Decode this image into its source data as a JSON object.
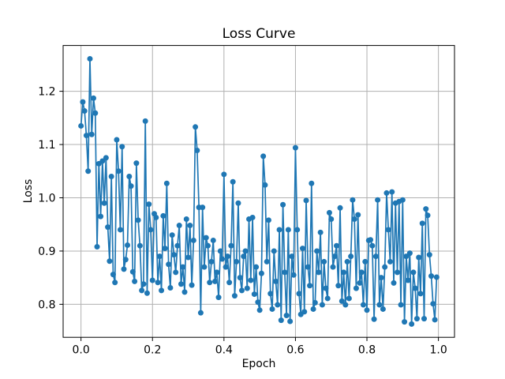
{
  "chart_data": {
    "type": "line",
    "title": "Loss Curve",
    "xlabel": "Epoch",
    "ylabel": "Loss",
    "grid": true,
    "legend": "none",
    "line_color": "#1f77b4",
    "grid_color": "#b0b0b0",
    "spine_color": "#000000",
    "marker": "circle",
    "x_tick_values": [
      0.0,
      0.2,
      0.4,
      0.6,
      0.8,
      1.0
    ],
    "x_tick_labels": [
      "0.0",
      "0.2",
      "0.4",
      "0.6",
      "0.8",
      "1.0"
    ],
    "y_tick_values": [
      0.8,
      0.9,
      1.0,
      1.1,
      1.2
    ],
    "y_tick_labels": [
      "0.8",
      "0.9",
      "1.0",
      "1.1",
      "1.2"
    ],
    "xlim": [
      -0.05,
      1.045
    ],
    "ylim": [
      0.738,
      1.286
    ],
    "x": [
      0.0,
      0.005,
      0.01,
      0.015,
      0.02,
      0.025,
      0.03,
      0.035,
      0.04,
      0.045,
      0.05,
      0.055,
      0.06,
      0.065,
      0.07,
      0.075,
      0.08,
      0.085,
      0.09,
      0.095,
      0.1,
      0.105,
      0.11,
      0.115,
      0.12,
      0.125,
      0.13,
      0.135,
      0.14,
      0.145,
      0.15,
      0.155,
      0.16,
      0.165,
      0.17,
      0.175,
      0.18,
      0.185,
      0.19,
      0.195,
      0.2,
      0.205,
      0.21,
      0.215,
      0.22,
      0.225,
      0.23,
      0.235,
      0.24,
      0.245,
      0.25,
      0.255,
      0.26,
      0.265,
      0.27,
      0.275,
      0.28,
      0.285,
      0.29,
      0.295,
      0.3,
      0.305,
      0.31,
      0.315,
      0.32,
      0.325,
      0.33,
      0.335,
      0.34,
      0.345,
      0.35,
      0.355,
      0.36,
      0.365,
      0.37,
      0.375,
      0.38,
      0.385,
      0.39,
      0.395,
      0.4,
      0.405,
      0.41,
      0.415,
      0.42,
      0.425,
      0.43,
      0.435,
      0.44,
      0.445,
      0.45,
      0.455,
      0.46,
      0.465,
      0.47,
      0.475,
      0.48,
      0.485,
      0.49,
      0.495,
      0.5,
      0.505,
      0.51,
      0.515,
      0.52,
      0.525,
      0.53,
      0.535,
      0.54,
      0.545,
      0.55,
      0.555,
      0.56,
      0.565,
      0.57,
      0.575,
      0.58,
      0.585,
      0.59,
      0.595,
      0.6,
      0.605,
      0.61,
      0.615,
      0.62,
      0.625,
      0.63,
      0.635,
      0.64,
      0.645,
      0.65,
      0.655,
      0.66,
      0.665,
      0.67,
      0.675,
      0.68,
      0.685,
      0.69,
      0.695,
      0.7,
      0.705,
      0.71,
      0.715,
      0.72,
      0.725,
      0.73,
      0.735,
      0.74,
      0.745,
      0.75,
      0.755,
      0.76,
      0.765,
      0.77,
      0.775,
      0.78,
      0.785,
      0.79,
      0.795,
      0.8,
      0.805,
      0.81,
      0.815,
      0.82,
      0.825,
      0.83,
      0.835,
      0.84,
      0.845,
      0.85,
      0.855,
      0.86,
      0.865,
      0.87,
      0.875,
      0.88,
      0.885,
      0.89,
      0.895,
      0.9,
      0.905,
      0.91,
      0.915,
      0.92,
      0.925,
      0.93,
      0.935,
      0.94,
      0.945,
      0.95,
      0.955,
      0.96,
      0.965,
      0.97,
      0.975,
      0.98,
      0.985,
      0.99,
      0.995
    ],
    "y": [
      1.135,
      1.18,
      1.163,
      1.117,
      1.05,
      1.261,
      1.119,
      1.187,
      1.159,
      0.908,
      1.064,
      0.965,
      1.069,
      0.99,
      1.075,
      0.945,
      0.881,
      1.04,
      0.856,
      0.841,
      1.109,
      1.05,
      0.94,
      1.096,
      0.866,
      0.884,
      0.911,
      1.04,
      1.022,
      0.861,
      0.843,
      1.065,
      0.958,
      0.91,
      0.826,
      0.838,
      1.144,
      0.821,
      0.988,
      0.94,
      0.845,
      0.97,
      0.963,
      0.841,
      0.89,
      0.826,
      0.966,
      0.905,
      1.027,
      0.875,
      0.831,
      0.93,
      0.893,
      0.86,
      0.91,
      0.948,
      0.838,
      0.87,
      0.823,
      0.96,
      0.888,
      0.948,
      0.836,
      0.92,
      1.133,
      1.089,
      0.982,
      0.784,
      0.982,
      0.87,
      0.925,
      0.91,
      0.841,
      0.88,
      0.92,
      0.843,
      0.86,
      0.813,
      0.9,
      0.885,
      1.044,
      0.87,
      0.89,
      0.841,
      0.91,
      1.03,
      0.816,
      0.88,
      0.99,
      0.85,
      0.826,
      0.89,
      0.9,
      0.83,
      0.96,
      0.845,
      0.963,
      0.819,
      0.87,
      0.804,
      0.789,
      0.858,
      1.078,
      1.024,
      0.88,
      0.958,
      0.82,
      0.791,
      0.9,
      0.843,
      0.799,
      0.94,
      0.77,
      0.987,
      0.86,
      0.779,
      0.94,
      0.768,
      0.89,
      0.855,
      1.094,
      0.94,
      0.82,
      0.781,
      0.905,
      0.786,
      0.995,
      0.87,
      0.835,
      1.027,
      0.791,
      0.803,
      0.9,
      0.86,
      0.935,
      0.799,
      0.88,
      0.83,
      0.811,
      0.972,
      0.96,
      0.87,
      0.89,
      0.91,
      0.835,
      0.981,
      0.806,
      0.86,
      0.799,
      0.88,
      0.811,
      0.89,
      0.996,
      0.96,
      0.83,
      0.968,
      0.84,
      0.86,
      0.799,
      0.88,
      0.789,
      0.92,
      0.921,
      0.91,
      0.772,
      0.89,
      0.996,
      0.799,
      0.85,
      0.791,
      0.87,
      1.009,
      0.94,
      0.88,
      1.011,
      0.84,
      0.99,
      0.86,
      0.993,
      0.799,
      0.996,
      0.767,
      0.89,
      0.845,
      0.896,
      0.763,
      0.86,
      0.83,
      0.773,
      0.888,
      0.82,
      0.952,
      0.773,
      0.979,
      0.967,
      0.893,
      0.853,
      0.801,
      0.771,
      0.851
    ]
  }
}
